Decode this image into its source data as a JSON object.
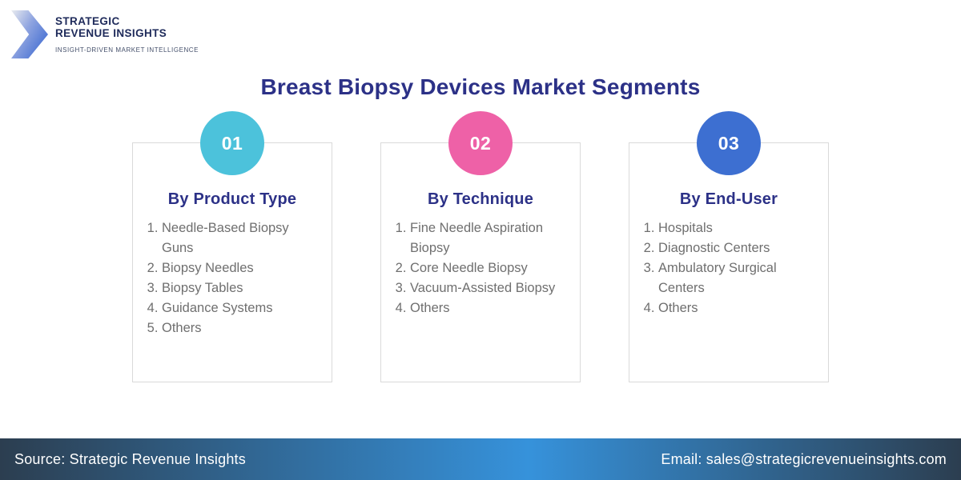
{
  "logo": {
    "name_line1": "STRATEGIC",
    "name_line2": "REVENUE INSIGHTS",
    "tagline": "INSIGHT-DRIVEN MARKET INTELLIGENCE"
  },
  "title": "Breast Biopsy Devices Market Segments",
  "cards": [
    {
      "number": "01",
      "badge_color": "#4cc2db",
      "heading": "By Product Type",
      "items": [
        "Needle-Based Biopsy Guns",
        "Biopsy Needles",
        "Biopsy Tables",
        "Guidance Systems",
        "Others"
      ]
    },
    {
      "number": "02",
      "badge_color": "#ee61a7",
      "heading": "By Technique",
      "items": [
        "Fine Needle Aspiration Biopsy",
        "Core Needle Biopsy",
        "Vacuum-Assisted Biopsy",
        "Others"
      ]
    },
    {
      "number": "03",
      "badge_color": "#3d6fd1",
      "heading": "By End-User",
      "items": [
        "Hospitals",
        "Diagnostic Centers",
        "Ambulatory Surgical Centers",
        "Others"
      ]
    }
  ],
  "footer": {
    "source": "Source: Strategic Revenue Insights",
    "email": "Email: sales@strategicrevenueinsights.com"
  },
  "colors": {
    "title_navy": "#2c3187",
    "list_text": "#6f6f6f",
    "card_border": "#dadada",
    "footer_edge": "#2c3e50",
    "footer_center": "#3692db",
    "logo_navy": "#1e2a5a",
    "logo_tagline": "#45506b",
    "badge_text": "#ffffff"
  }
}
